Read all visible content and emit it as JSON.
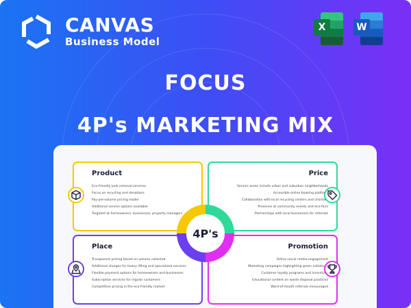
{
  "brand": {
    "name": "CANVAS",
    "subtitle": "Business Model"
  },
  "apps": [
    {
      "name": "excel-icon",
      "letter": "X"
    },
    {
      "name": "word-icon",
      "letter": "W"
    }
  ],
  "heading": "FOCUS",
  "subheading": "4P's MARKETING MIX",
  "center_label": "4P's",
  "colors": {
    "product": "#f5c800",
    "price": "#2fd99a",
    "place": "#6a3ff0",
    "promotion": "#e02ff0"
  },
  "quadrants": {
    "product": {
      "title": "Product",
      "icon": "box-icon",
      "items": [
        "Eco-friendly junk removal services",
        "Focus on recycling and donations",
        "Pay-per-volume pricing model",
        "Additional service options available",
        "Targeted at homeowners, businesses, property managers"
      ]
    },
    "price": {
      "title": "Price",
      "icon": "price-tag-icon",
      "items": [
        "Service areas include urban and suburban neighborhoods",
        "Accessible online booking platform",
        "Collaboration with local recycling centers and charities",
        "Presence at community events and eco-fairs",
        "Partnerships with local businesses for referrals"
      ]
    },
    "place": {
      "title": "Place",
      "icon": "map-pin-icon",
      "items": [
        "Transparent pricing based on volume collected",
        "Additional charges for heavy lifting and specialized services",
        "Flexible payment options for homeowners and businesses",
        "Subscription services for regular customers",
        "Competitive pricing in the eco-friendly market"
      ]
    },
    "promotion": {
      "title": "Promotion",
      "icon": "trophy-icon",
      "items": [
        "Active social media engagement",
        "Marketing campaigns highlighting green initiatives",
        "Customer loyalty programs and incentives",
        "Educational content on waste disposal practices",
        "Word-of-mouth referrals encouraged"
      ]
    }
  }
}
